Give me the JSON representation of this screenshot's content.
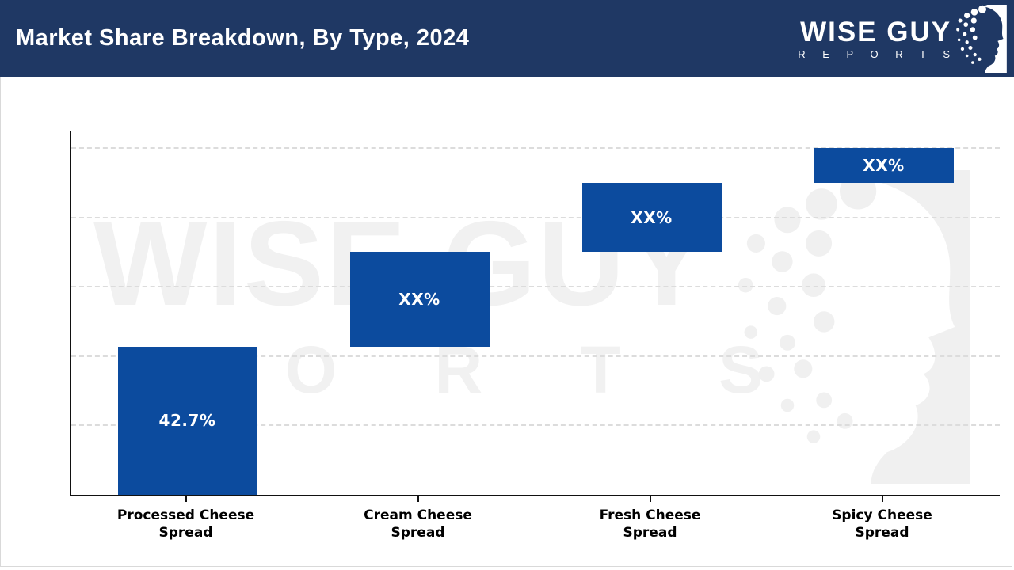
{
  "header": {
    "title": "Market Share Breakdown, By Type, 2024",
    "bg_color": "#1f3864",
    "logo": {
      "name": "WISE GUY",
      "tagline": "R E P O R T S"
    }
  },
  "watermark": {
    "line1": "WISE GUY",
    "line2": "P O R T S"
  },
  "chart_data": {
    "type": "bar",
    "subtype": "floating-waterfall",
    "title": "Market Share Breakdown, By Type, 2024",
    "categories": [
      "Processed Cheese\nSpread",
      "Cream Cheese\nSpread",
      "Fresh Cheese\nSpread",
      "Spicy Cheese\nSpread"
    ],
    "series": [
      {
        "name": "Market Share %",
        "segments": [
          {
            "category": "Processed Cheese Spread",
            "start": 0,
            "end": 42.7,
            "label": "42.7%"
          },
          {
            "category": "Cream Cheese Spread",
            "start": 42.7,
            "end": 70,
            "label": "XX%"
          },
          {
            "category": "Fresh Cheese Spread",
            "start": 70,
            "end": 90,
            "label": "XX%"
          },
          {
            "category": "Spicy Cheese Spread",
            "start": 90,
            "end": 100,
            "label": "XX%"
          }
        ]
      }
    ],
    "xlabel": "",
    "ylabel": "",
    "ylim": [
      0,
      105
    ],
    "y_ticks": [
      0,
      20,
      40,
      60,
      80,
      100
    ],
    "grid": {
      "horizontal": true,
      "style": "dashed",
      "color": "#dcdcdc"
    },
    "legend": "none",
    "bar_color": "#0c4b9e",
    "bar_label_color": "#ffffff"
  }
}
